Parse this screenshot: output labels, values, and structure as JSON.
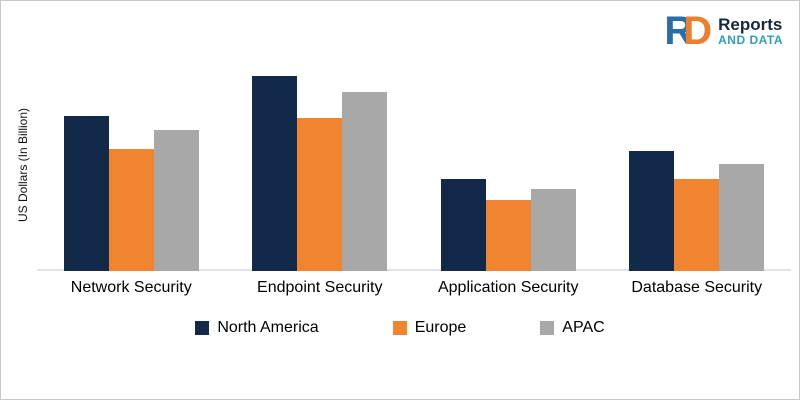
{
  "logo": {
    "letter_r": "R",
    "letter_d": "D",
    "brand_top": "Reports",
    "brand_bottom": "AND DATA",
    "color_r": "#2a6da8",
    "color_d": "#ef7d2e",
    "color_top": "#16283c",
    "color_bottom": "#2e9fc0"
  },
  "chart_data": {
    "type": "bar",
    "title": "",
    "ylabel": "US Dollars  (In Billion)",
    "xlabel": "",
    "ylim": [
      0,
      10
    ],
    "grid": false,
    "legend_position": "bottom",
    "categories": [
      "Network Security",
      "Endpoint Security",
      "Application Security",
      "Database Security"
    ],
    "series": [
      {
        "name": "North America",
        "color": "#12294a",
        "values": [
          7.4,
          9.3,
          4.4,
          5.7
        ]
      },
      {
        "name": "Europe",
        "color": "#f0842f",
        "values": [
          5.8,
          7.3,
          3.4,
          4.4
        ]
      },
      {
        "name": "APAC",
        "color": "#a8a8a8",
        "values": [
          6.7,
          8.5,
          3.9,
          5.1
        ]
      }
    ]
  }
}
